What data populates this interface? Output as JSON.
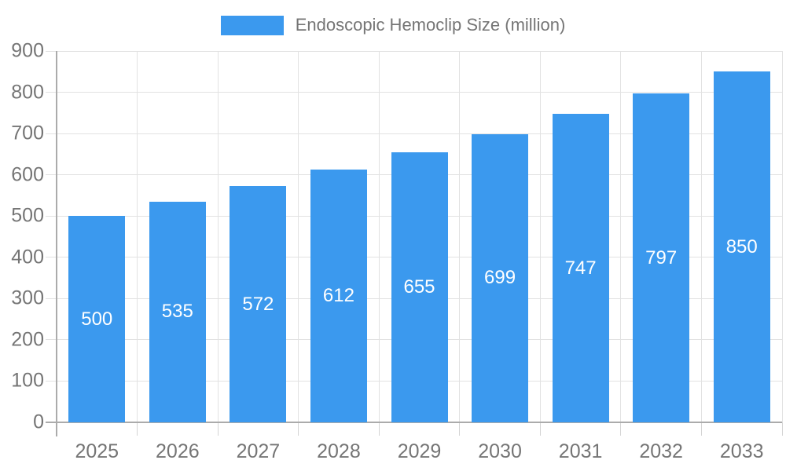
{
  "legend": {
    "label": "Endoscopic Hemoclip Size (million)"
  },
  "chart_data": {
    "type": "bar",
    "title": "Endoscopic Hemoclip Size (million)",
    "categories": [
      "2025",
      "2026",
      "2027",
      "2028",
      "2029",
      "2030",
      "2031",
      "2032",
      "2033"
    ],
    "values": [
      500,
      535,
      572,
      612,
      655,
      699,
      747,
      797,
      850
    ],
    "xlabel": "",
    "ylabel": "",
    "ylim": [
      0,
      900
    ],
    "ytick_step": 100,
    "grid": true,
    "legend_position": "top",
    "bar_color": "#3B99EE",
    "value_label_color": "#FFFFFF",
    "axis_label_color": "#757575",
    "grid_color": "#E2E2E2",
    "axis_line_color": "#ABABAB"
  }
}
